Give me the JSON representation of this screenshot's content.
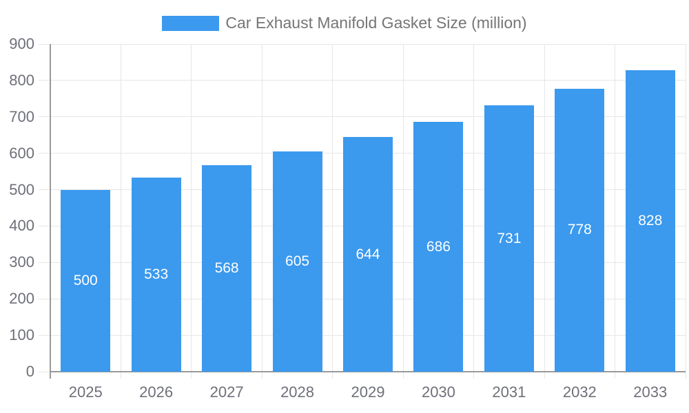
{
  "chart_data": {
    "type": "bar",
    "title": "Car Exhaust Manifold Gasket Size (million)",
    "categories": [
      "2025",
      "2026",
      "2027",
      "2028",
      "2029",
      "2030",
      "2031",
      "2032",
      "2033"
    ],
    "values": [
      500,
      533,
      568,
      605,
      644,
      686,
      731,
      778,
      828
    ],
    "xlabel": "",
    "ylabel": "",
    "ylim": [
      0,
      900
    ],
    "ytick_step": 100,
    "grid": true,
    "legend": {
      "position": "top-center",
      "label": "Car Exhaust Manifold Gasket Size (million)"
    },
    "colors": {
      "bar": "#3B99EE",
      "grid": "#E6E6E6",
      "axis": "#999999",
      "tick_label": "#6E7079",
      "legend_text": "#757575",
      "value_label": "#FFFFFF"
    }
  }
}
